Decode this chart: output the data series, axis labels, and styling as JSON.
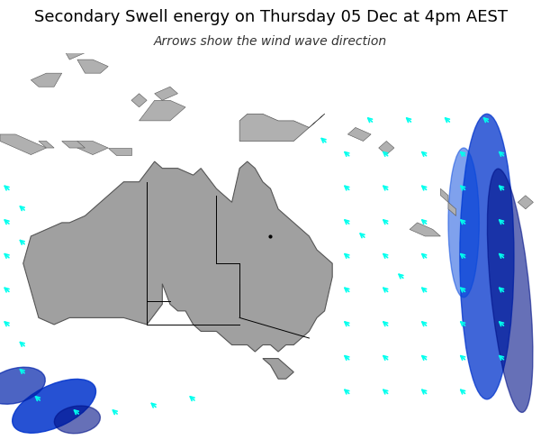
{
  "title": "Secondary Swell energy on Thursday 05 Dec at 4pm AEST",
  "subtitle": "Arrows show the wind wave direction",
  "title_fontsize": 13,
  "subtitle_fontsize": 10,
  "bg_color": "#ffffff",
  "map_bg": "#000000",
  "land_color": "#a0a0a0",
  "arrow_color": "#00ffee",
  "figsize": [
    6.01,
    4.88
  ],
  "dpi": 100
}
